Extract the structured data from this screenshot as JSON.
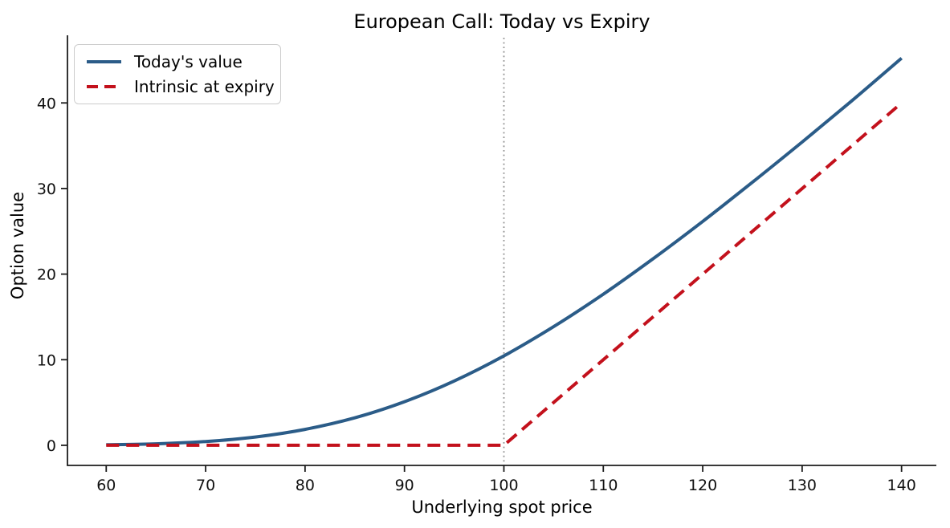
{
  "chart_data": {
    "type": "line",
    "title": "European Call: Today vs Expiry",
    "xlabel": "Underlying spot price",
    "ylabel": "Option value",
    "xlim": [
      56.1,
      143.5
    ],
    "ylim": [
      -2.35,
      47.9
    ],
    "x_ticks": [
      60,
      70,
      80,
      90,
      100,
      110,
      120,
      130,
      140
    ],
    "y_ticks": [
      0,
      10,
      20,
      30,
      40
    ],
    "grid": false,
    "legend_position": "upper left",
    "series": [
      {
        "name": "Today's value",
        "color": "#2b5c88",
        "style": "solid",
        "width": 4,
        "smooth": true,
        "x": [
          60,
          65,
          70,
          75,
          80,
          85,
          90,
          95,
          100,
          105,
          110,
          115,
          120,
          125,
          130,
          135,
          140
        ],
        "y": [
          0.06,
          0.17,
          0.44,
          0.97,
          1.86,
          3.21,
          5.09,
          7.51,
          10.45,
          13.86,
          17.66,
          21.79,
          26.16,
          30.73,
          35.43,
          40.25,
          45.23
        ]
      },
      {
        "name": "Intrinsic at expiry",
        "color": "#c3111c",
        "style": "dashed",
        "width": 4,
        "smooth": false,
        "x": [
          60,
          100,
          140
        ],
        "y": [
          0,
          0,
          40
        ]
      }
    ],
    "vline": {
      "x": 100,
      "color": "#909090",
      "style": "dotted"
    },
    "axis_color": "#1c1c1c",
    "tick_label_color": "#111111"
  }
}
